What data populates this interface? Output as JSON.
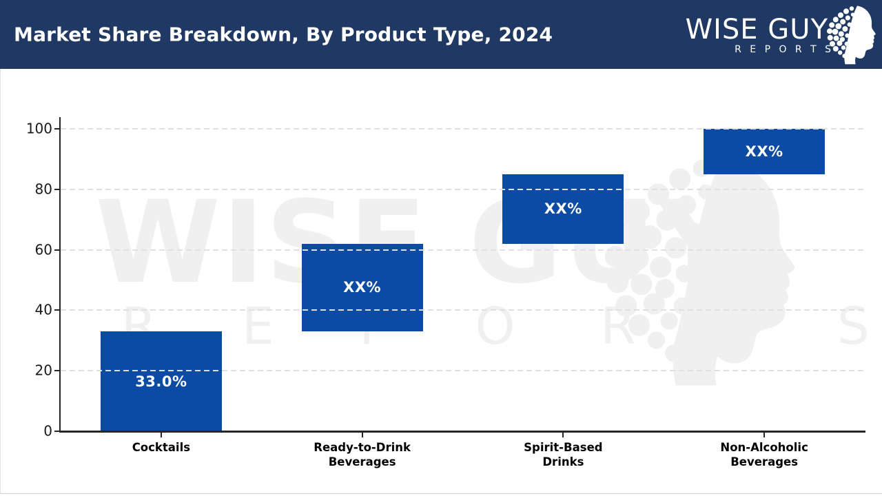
{
  "header": {
    "title": "Market Share Breakdown, By Product Type, 2024",
    "logo": {
      "name": "WISE GUY",
      "subtitle": "R E P O R T S"
    }
  },
  "watermark": {
    "line1": "WISE GUY",
    "line2": "R E P O R T S"
  },
  "chart_data": {
    "type": "bar",
    "variant": "floating-segment-waterfall",
    "title": "Market Share Breakdown, By Product Type, 2024",
    "categories": [
      "Cocktails",
      "Ready-to-Drink Beverages",
      "Spirit-Based Drinks",
      "Non-Alcoholic Beverages"
    ],
    "category_label_lines": [
      [
        "Cocktails"
      ],
      [
        "Ready-to-Drink",
        "Beverages"
      ],
      [
        "Spirit-Based",
        "Drinks"
      ],
      [
        "Non-Alcoholic",
        "Beverages"
      ]
    ],
    "segments": [
      {
        "category": "Cocktails",
        "base": 0,
        "top": 33,
        "label": "33.0%"
      },
      {
        "category": "Ready-to-Drink Beverages",
        "base": 33,
        "top": 62,
        "label": "XX%"
      },
      {
        "category": "Spirit-Based Drinks",
        "base": 62,
        "top": 85,
        "label": "XX%"
      },
      {
        "category": "Non-Alcoholic Beverages",
        "base": 85,
        "top": 100,
        "label": "XX%"
      }
    ],
    "xlabel": "",
    "ylabel": "",
    "ylim": [
      0,
      100
    ],
    "yticks": [
      0,
      20,
      40,
      60,
      80,
      100
    ],
    "grid": "horizontal-dashed",
    "legend": "none",
    "colors": {
      "bar": "#0c4ba3",
      "bar_label": "#ffffff",
      "grid": "#e0e0e0",
      "axis": "#262626",
      "tick_label": "#1a1a1a",
      "category_label": "#000000",
      "header_bg": "#1f3864",
      "header_text": "#ffffff",
      "watermark": "#f0f0f0"
    }
  }
}
